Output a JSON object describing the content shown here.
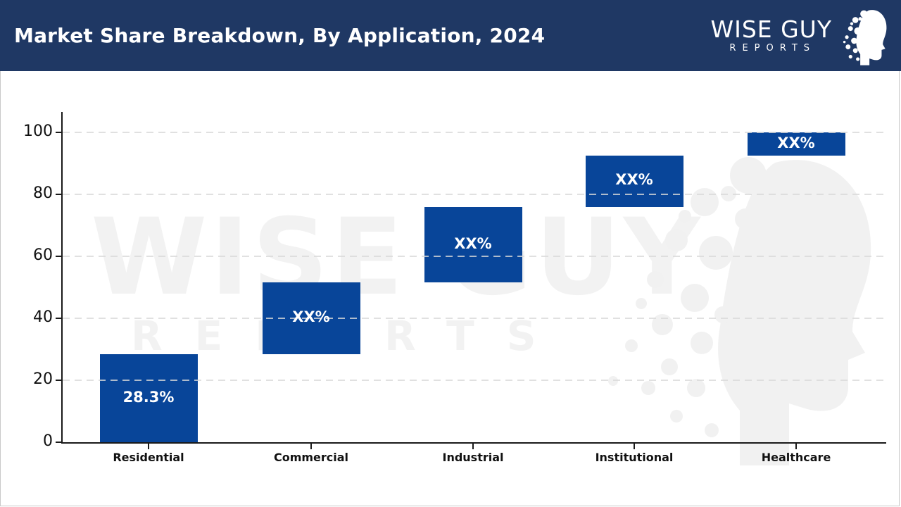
{
  "header": {
    "title": "Market Share Breakdown, By Application, 2024",
    "background_color": "#1f3864",
    "logo": {
      "line1": "WISE GUY",
      "line2": "REPORTS"
    }
  },
  "watermark": {
    "line1": "WISE GUY",
    "line2": "REPORTS"
  },
  "chart_data": {
    "type": "bar",
    "subtype": "waterfall-stacked-segments",
    "title": "Market Share Breakdown, By Application, 2024",
    "categories": [
      "Residential",
      "Commercial",
      "Industrial",
      "Institutional",
      "Healthcare"
    ],
    "segments": [
      {
        "category": "Residential",
        "start": 0,
        "end": 28.3,
        "value_label": "28.3%"
      },
      {
        "category": "Commercial",
        "start": 28.3,
        "end": 51.5,
        "value_label": "XX%"
      },
      {
        "category": "Industrial",
        "start": 51.5,
        "end": 76.0,
        "value_label": "XX%"
      },
      {
        "category": "Institutional",
        "start": 76.0,
        "end": 92.5,
        "value_label": "XX%"
      },
      {
        "category": "Healthcare",
        "start": 92.5,
        "end": 100.0,
        "value_label": "XX%"
      }
    ],
    "yticks": [
      0,
      20,
      40,
      60,
      80,
      100
    ],
    "ylim": [
      0,
      105
    ],
    "xlabel": "",
    "ylabel": "",
    "bar_color": "#084599",
    "grid": "dashed horizontal",
    "legend": "none"
  }
}
